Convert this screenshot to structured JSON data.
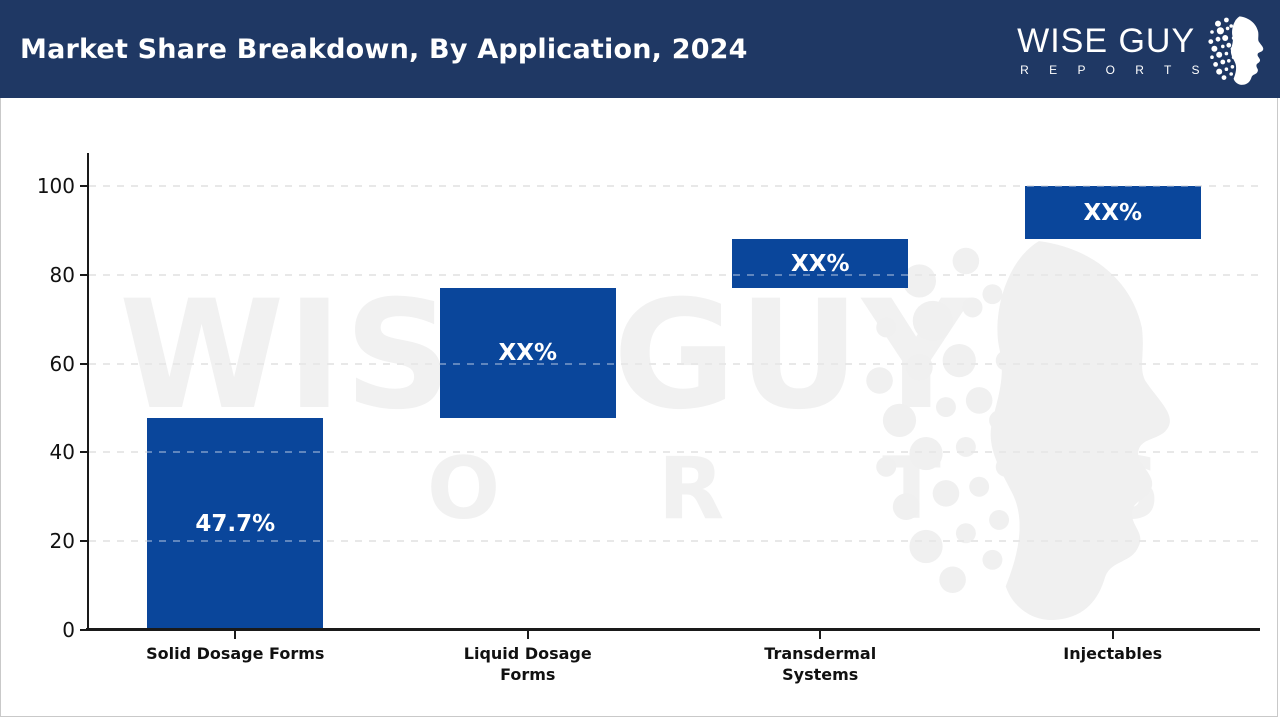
{
  "header": {
    "title": "Market Share Breakdown, By Application, 2024",
    "logo": {
      "wordmark": "WISE GUY",
      "subtext": "R E P O R T S"
    }
  },
  "watermark": {
    "line1": "WISE GUY",
    "line2": "P O R T S"
  },
  "colors": {
    "header_bg": "#1f3864",
    "bar": "#0a469b",
    "bar_label": "#ffffff",
    "axis": "#1a1a1a",
    "gridline": "#dcdcdc",
    "watermark": "#f1f1f1",
    "border": "#c9c9c9"
  },
  "chart_data": {
    "type": "bar",
    "subtype": "floating-waterfall",
    "title": "Market Share Breakdown, By Application, 2024",
    "categories": [
      "Solid Dosage Forms",
      "Liquid Dosage Forms",
      "Transdermal Systems",
      "Injectables"
    ],
    "categories_display": [
      [
        "Solid Dosage Forms"
      ],
      [
        "Liquid Dosage",
        "Forms"
      ],
      [
        "Transdermal",
        "Systems"
      ],
      [
        "Injectables"
      ]
    ],
    "segments": [
      {
        "category": "Solid Dosage Forms",
        "start": 0,
        "end": 47.7,
        "label": "47.7%"
      },
      {
        "category": "Liquid Dosage Forms",
        "start": 47.7,
        "end": 77,
        "label": "XX%"
      },
      {
        "category": "Transdermal Systems",
        "start": 77,
        "end": 88,
        "label": "XX%"
      },
      {
        "category": "Injectables",
        "start": 88,
        "end": 100,
        "label": "XX%"
      }
    ],
    "xlabel": "",
    "ylabel": "",
    "ylim": [
      0,
      100
    ],
    "yticks": [
      0,
      20,
      40,
      60,
      80,
      100
    ],
    "grid": "horizontal-dashed",
    "legend": "none"
  }
}
